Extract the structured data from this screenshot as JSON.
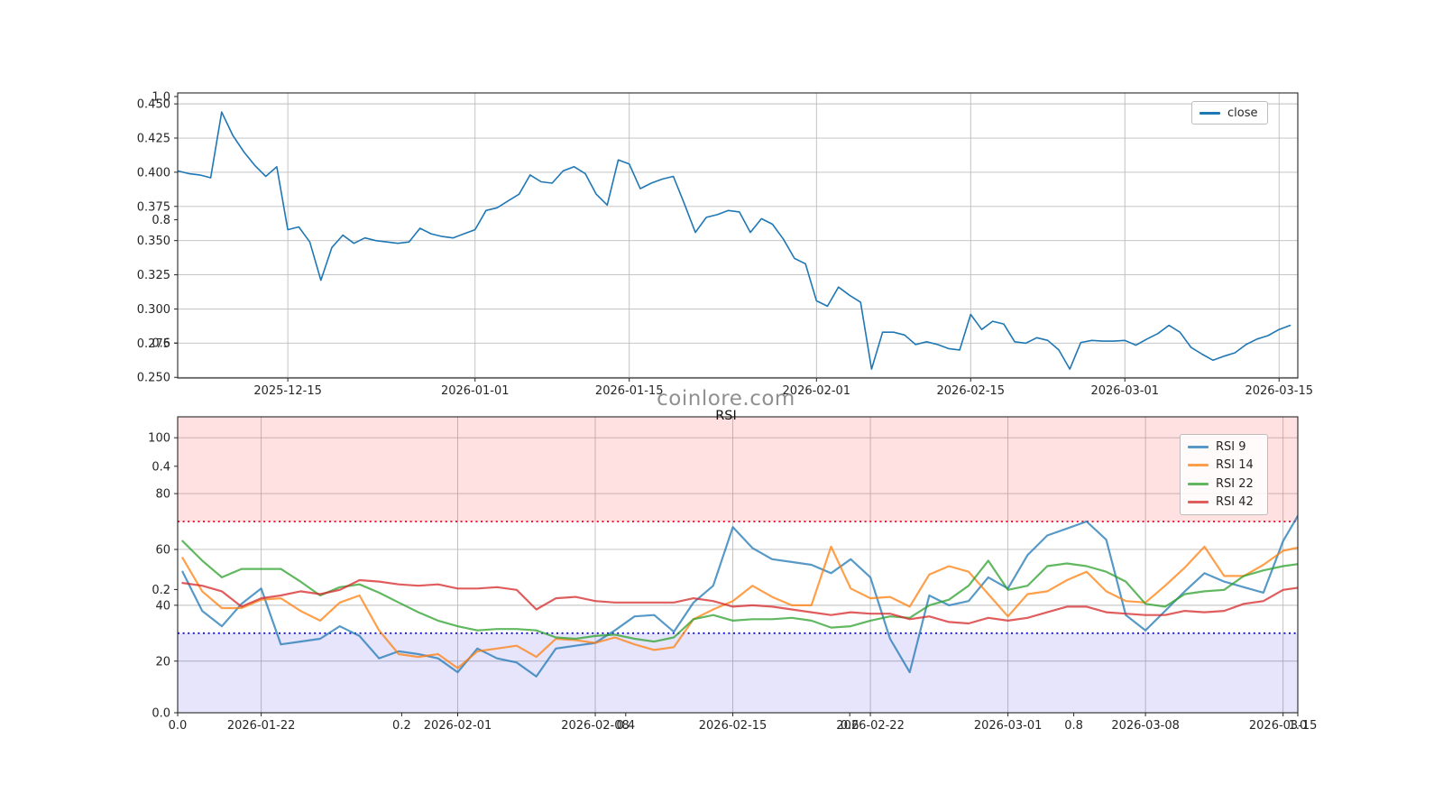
{
  "figure": {
    "watermark": "coinlore.com",
    "background_color": "#ffffff"
  },
  "chart_data": [
    {
      "id": "price",
      "type": "line",
      "title": "",
      "x_start_date": "2025-12-05",
      "x_step": "1 day",
      "ylim": [
        0.2495,
        0.458
      ],
      "grid": true,
      "legend_position": "upper right",
      "yticks": [
        "0.250",
        "0.275",
        "0.300",
        "0.325",
        "0.350",
        "0.375",
        "0.400",
        "0.425",
        "0.450"
      ],
      "xticks": [
        {
          "i": 10,
          "label": "2025-12-15"
        },
        {
          "i": 27,
          "label": "2026-01-01"
        },
        {
          "i": 41,
          "label": "2026-01-15"
        },
        {
          "i": 58,
          "label": "2026-02-01"
        },
        {
          "i": 72,
          "label": "2026-02-15"
        },
        {
          "i": 86,
          "label": "2026-03-01"
        },
        {
          "i": 100,
          "label": "2026-03-15"
        }
      ],
      "series": [
        {
          "name": "close",
          "color": "#1f77b4",
          "width": 1.6,
          "values": [
            0.401,
            0.399,
            0.398,
            0.396,
            0.444,
            0.427,
            0.415,
            0.405,
            0.397,
            0.404,
            0.358,
            0.36,
            0.349,
            0.321,
            0.345,
            0.354,
            0.348,
            0.352,
            0.35,
            0.349,
            0.348,
            0.349,
            0.359,
            0.355,
            0.353,
            0.352,
            0.355,
            0.358,
            0.372,
            0.374,
            0.379,
            0.384,
            0.398,
            0.393,
            0.392,
            0.401,
            0.404,
            0.399,
            0.384,
            0.376,
            0.409,
            0.406,
            0.388,
            0.392,
            0.395,
            0.397,
            0.377,
            0.356,
            0.367,
            0.369,
            0.372,
            0.371,
            0.356,
            0.366,
            0.362,
            0.351,
            0.337,
            0.333,
            0.306,
            0.302,
            0.316,
            0.31,
            0.305,
            0.256,
            0.283,
            0.283,
            0.281,
            0.274,
            0.276,
            0.274,
            0.271,
            0.27,
            0.296,
            0.285,
            0.291,
            0.289,
            0.276,
            0.275,
            0.279,
            0.277,
            0.27,
            0.256,
            0.2755,
            0.277,
            0.2765,
            0.2765,
            0.277,
            0.2735,
            0.278,
            0.282,
            0.288,
            0.283,
            0.272,
            0.267,
            0.2625,
            0.2655,
            0.268,
            0.274,
            0.278,
            0.2805,
            0.285,
            0.288
          ]
        }
      ]
    },
    {
      "id": "rsi",
      "type": "line",
      "title": "RSI",
      "x_start_date": "2026-01-18",
      "x_step": "1 day",
      "ylim": [
        1.5,
        107.5
      ],
      "grid": true,
      "legend_position": "upper right",
      "overbought_level": 70,
      "oversold_level": 30,
      "overbought_band_color": "rgba(255,40,50,0.14)",
      "oversold_band_color": "rgba(50,40,230,0.12)",
      "overbought_line_color": "#e8112d",
      "oversold_line_color": "#1414c8",
      "yticks": [
        "20",
        "40",
        "60",
        "80",
        "100"
      ],
      "xticks": [
        {
          "i": 4,
          "label": "2026-01-22"
        },
        {
          "i": 14,
          "label": "2026-02-01"
        },
        {
          "i": 21,
          "label": "2026-02-08"
        },
        {
          "i": 28,
          "label": "2026-02-15"
        },
        {
          "i": 35,
          "label": "2026-02-22"
        },
        {
          "i": 42,
          "label": "2026-03-01"
        },
        {
          "i": 49,
          "label": "2026-03-08"
        },
        {
          "i": 56,
          "label": "2026-03-15"
        }
      ],
      "series": [
        {
          "name": "RSI 9",
          "color": "rgba(31,119,180,0.75)",
          "width": 2.2,
          "values": [
            52,
            38,
            32.5,
            40.5,
            46,
            26,
            27,
            28,
            32.5,
            29,
            21,
            23.5,
            22.5,
            21,
            16,
            24.5,
            21,
            19.5,
            14.5,
            24.5,
            25.5,
            26.5,
            31,
            36,
            36.5,
            30.5,
            41,
            47,
            68,
            60.5,
            56.5,
            55.5,
            54.5,
            51.5,
            56.5,
            50,
            28,
            16,
            43.5,
            40,
            41.5,
            50,
            46,
            58,
            65,
            67.5,
            70,
            63.5,
            36.5,
            31,
            38,
            45,
            51.5,
            48.5,
            46.5,
            44.5,
            63,
            75
          ]
        },
        {
          "name": "RSI 14",
          "color": "rgba(255,127,14,0.75)",
          "width": 2.2,
          "values": [
            57,
            45,
            39,
            39,
            42,
            42.5,
            38,
            34.5,
            41,
            43.5,
            31,
            22.5,
            21.5,
            22.5,
            17.5,
            23.5,
            24.5,
            25.5,
            21.5,
            28,
            27.5,
            26.5,
            28.5,
            26,
            24,
            25,
            35,
            38.5,
            41.5,
            47,
            43,
            40,
            40,
            61,
            46,
            42.5,
            43,
            39.5,
            51,
            54,
            52,
            44,
            36,
            44,
            45,
            49,
            52,
            45,
            41.5,
            41,
            47,
            53.5,
            61,
            50.5,
            50.5,
            54.5,
            59.5,
            61
          ]
        },
        {
          "name": "RSI 22",
          "color": "rgba(44,160,44,0.75)",
          "width": 2.2,
          "values": [
            63,
            56,
            50,
            53,
            53,
            53,
            48.5,
            43.5,
            46.5,
            47.5,
            44.5,
            41,
            37.5,
            34.5,
            32.5,
            31,
            31.5,
            31.5,
            31,
            28.5,
            28,
            29,
            29.5,
            28,
            27,
            28.5,
            35,
            36.5,
            34.5,
            35,
            35,
            35.5,
            34.5,
            32,
            32.5,
            34.5,
            36,
            35.5,
            40,
            42,
            47,
            56,
            45.5,
            47,
            54,
            55,
            54,
            52,
            48.5,
            40.5,
            39.5,
            44,
            45,
            45.5,
            50.5,
            52.5,
            54,
            55
          ]
        },
        {
          "name": "RSI 42",
          "color": "rgba(214,39,40,0.75)",
          "width": 2.2,
          "values": [
            48,
            47,
            45,
            39.5,
            42.5,
            43.5,
            45,
            44,
            45.5,
            49,
            48.5,
            47.5,
            47,
            47.5,
            46,
            46,
            46.5,
            45.5,
            38.5,
            42.5,
            43,
            41.5,
            41,
            41,
            41,
            41,
            42.5,
            41.5,
            39.5,
            40,
            39.5,
            38.5,
            37.5,
            36.5,
            37.5,
            37,
            37,
            35,
            36,
            34,
            33.5,
            35.5,
            34.5,
            35.5,
            37.5,
            39.5,
            39.5,
            37.5,
            37,
            36.5,
            36.5,
            38,
            37.5,
            38,
            40.5,
            41.5,
            45.5,
            46.5
          ]
        }
      ]
    },
    {
      "id": "overlay-axis",
      "type": "line",
      "xticks": [
        "0.0",
        "0.2",
        "0.4",
        "0.6",
        "0.8",
        "1.0"
      ],
      "yticks": [
        "0.0",
        "0.2",
        "0.4",
        "0.6",
        "0.8",
        "1.0"
      ]
    }
  ]
}
